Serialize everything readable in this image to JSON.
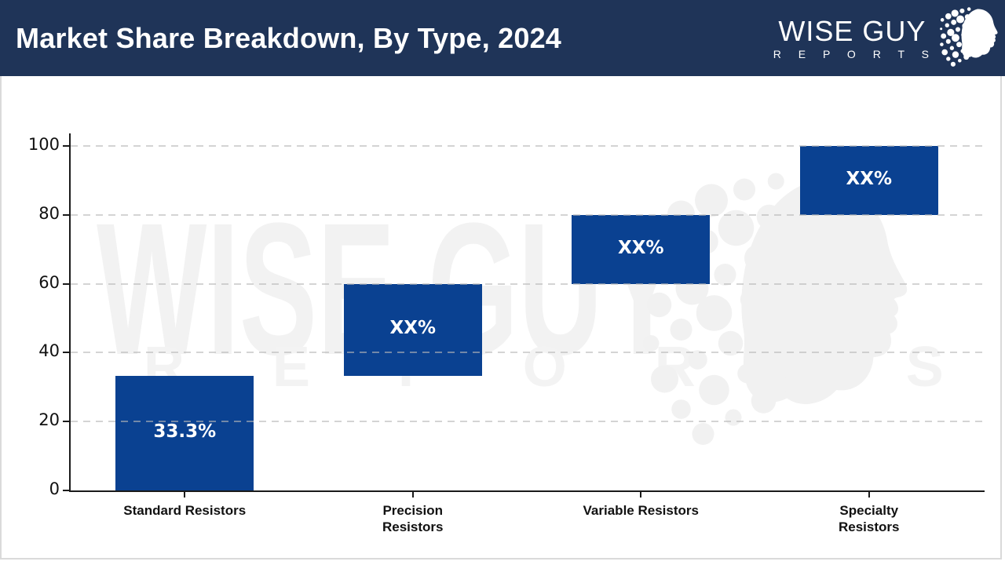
{
  "header": {
    "title": "Market Share Breakdown, By Type, 2024",
    "bg_color": "#1f3458",
    "logo": {
      "name": "WISE GUY",
      "tagline": "R E P O R T S"
    }
  },
  "watermark": {
    "line1": "WISE GUY",
    "line2": "R E P O R T S"
  },
  "chart_data": {
    "type": "bar",
    "subtype": "waterfall",
    "title": "Market Share Breakdown, By Type, 2024",
    "categories": [
      "Standard Resistors",
      "Precision\nResistors",
      "Variable Resistors",
      "Specialty\nResistors"
    ],
    "segments": [
      {
        "category": "Standard Resistors",
        "start": 0,
        "end": 33.3,
        "label": "33.3%"
      },
      {
        "category": "Precision Resistors",
        "start": 33.3,
        "end": 60,
        "label": "XX%"
      },
      {
        "category": "Variable Resistors",
        "start": 60,
        "end": 80,
        "label": "XX%"
      },
      {
        "category": "Specialty Resistors",
        "start": 80,
        "end": 100,
        "label": "XX%"
      }
    ],
    "yticks": [
      0,
      20,
      40,
      60,
      80,
      100
    ],
    "ylim": [
      0,
      103.6
    ],
    "xlabel": "",
    "ylabel": "",
    "bar_color": "#0a4191",
    "value_label_color": "#ffffff",
    "grid": {
      "axis": "y",
      "style": "dashed",
      "color": "#dcdcdc"
    },
    "legend": null
  }
}
